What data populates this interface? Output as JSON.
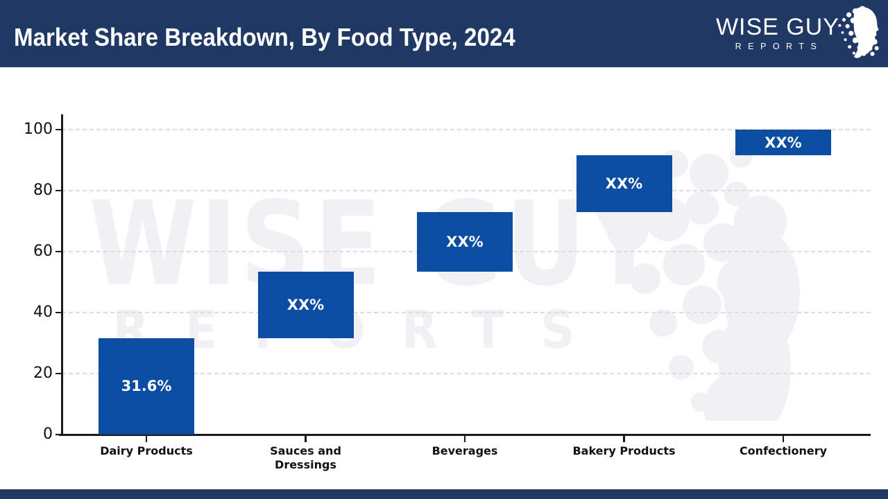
{
  "header": {
    "title": "Market Share Breakdown, By Food Type, 2024",
    "brand_top": "WISE GUY",
    "brand_bottom": "REPORTS"
  },
  "watermark": {
    "line1": "WISE GUY",
    "line2": "REPORTS"
  },
  "chart_data": {
    "type": "bar",
    "subtype": "waterfall",
    "title": "Market Share Breakdown, By Food Type, 2024",
    "categories": [
      "Dairy Products",
      "Sauces and Dressings",
      "Beverages",
      "Bakery Products",
      "Confectionery"
    ],
    "segments": [
      {
        "category": "Dairy Products",
        "start": 0,
        "end": 31.6,
        "label": "31.6%"
      },
      {
        "category": "Sauces and Dressings",
        "start": 31.6,
        "end": 53.5,
        "label": "XX%"
      },
      {
        "category": "Beverages",
        "start": 53.5,
        "end": 73.0,
        "label": "XX%"
      },
      {
        "category": "Bakery Products",
        "start": 73.0,
        "end": 91.5,
        "label": "XX%"
      },
      {
        "category": "Confectionery",
        "start": 91.5,
        "end": 100.0,
        "label": "XX%"
      }
    ],
    "xlabel": "",
    "ylabel": "",
    "ylim": [
      0,
      105
    ],
    "yticks": [
      0,
      20,
      40,
      60,
      80,
      100
    ],
    "grid": "horizontal dashed",
    "legend": "none"
  },
  "colors": {
    "header_bg": "#1F3864",
    "footer_bg": "#1F3864",
    "bar": "#0B4DA2",
    "bar_label": "#FFFFFF",
    "watermark": "#F1F1F4",
    "axis": "#1A1A1A",
    "grid": "#DDDDDD",
    "text": "#111111"
  }
}
